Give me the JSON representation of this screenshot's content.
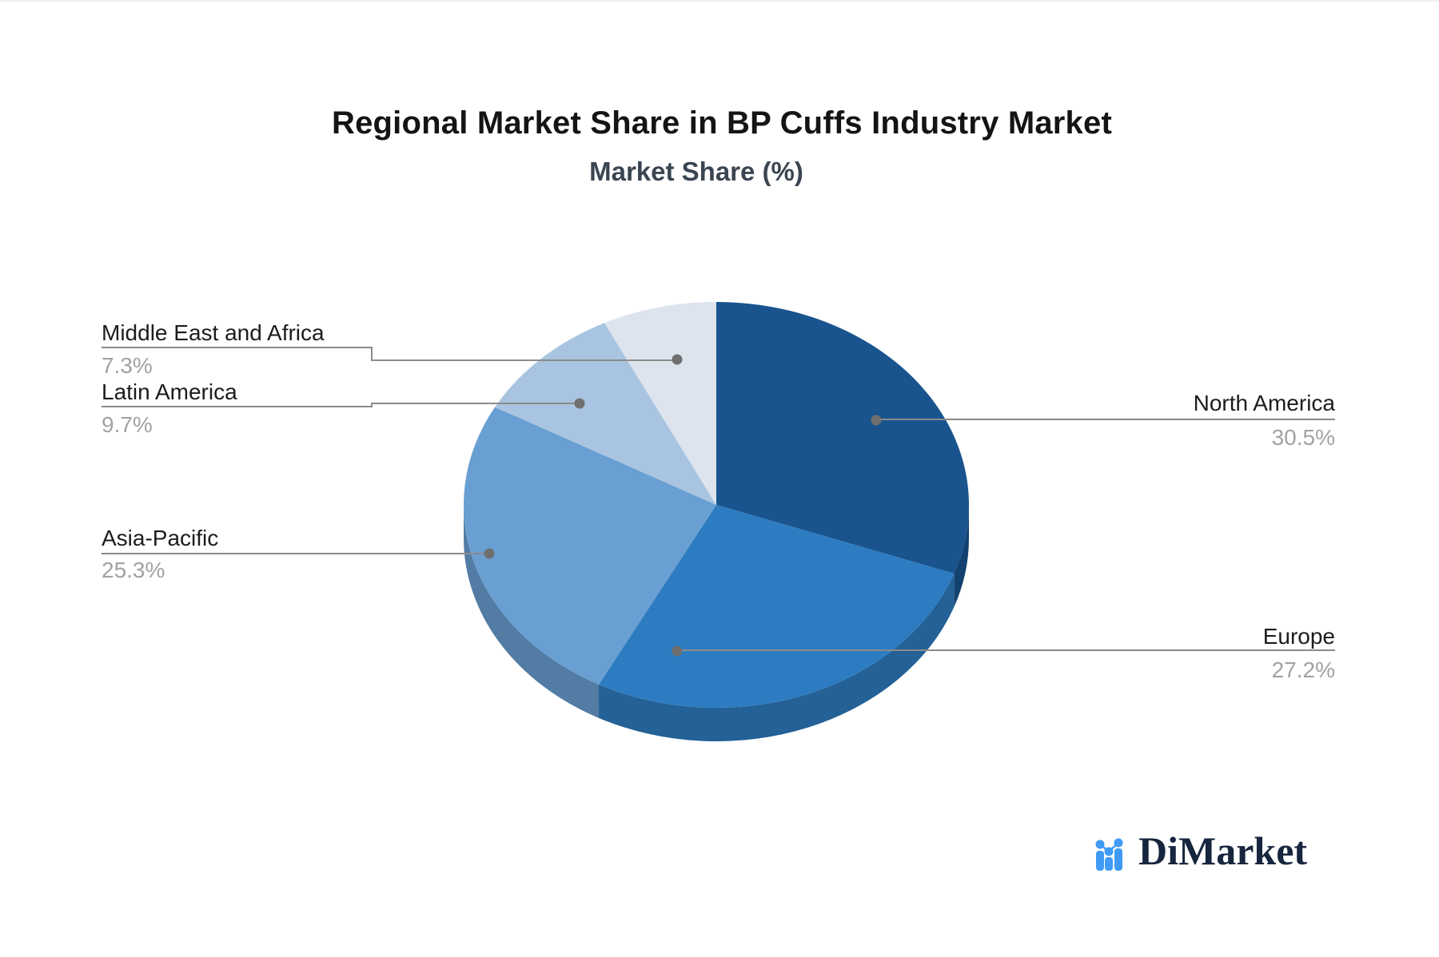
{
  "title": "Regional Market Share in BP Cuffs Industry Market",
  "subtitle": "Market Share (%)",
  "logo": {
    "text": "DiMarket",
    "icon": "bar-chart-logo-icon",
    "icon_color": "#3f9bf5",
    "text_color": "#17263e"
  },
  "colors": {
    "label_text": "#1c1c1c",
    "percent_text": "#a2a2a2",
    "leader_line": "#8b8b8b",
    "leader_dot": "#6f6f6f",
    "title_text": "#141414",
    "subtitle_text": "#3b4552",
    "background": "#ffffff"
  },
  "chart_data": {
    "type": "pie",
    "title": "Regional Market Share in BP Cuffs Industry Market",
    "subtitle": "Market Share (%)",
    "unit": "%",
    "style": "3d",
    "start_angle": "12-o-clock",
    "direction": "clockwise",
    "legend_position": "callout-labels",
    "slices": [
      {
        "label": "North America",
        "value": 30.5,
        "display": "30.5%",
        "color": "#1a548f"
      },
      {
        "label": "Europe",
        "value": 27.2,
        "display": "27.2%",
        "color": "#2d7cc1"
      },
      {
        "label": "Asia-Pacific",
        "value": 25.3,
        "display": "25.3%",
        "color": "#699fd2"
      },
      {
        "label": "Latin America",
        "value": 9.7,
        "display": "9.7%",
        "color": "#a8c4e0"
      },
      {
        "label": "Middle East and Africa",
        "value": 7.3,
        "display": "7.3%",
        "color": "#dde4ee"
      }
    ]
  }
}
